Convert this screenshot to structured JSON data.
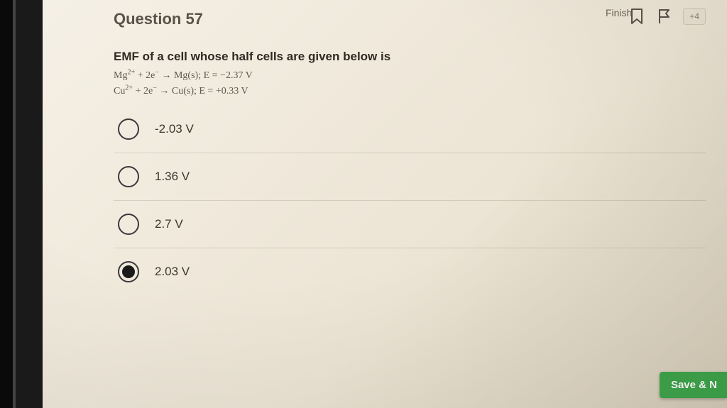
{
  "header": {
    "question_label": "Question 57",
    "finish_hint": "Finish",
    "badge": "+4"
  },
  "question": {
    "stem_prefix": "EMF of a cell whose half cells are given below is",
    "eq1_html": "Mg<sup>2+</sup> + 2e<sup>&minus;</sup> &rarr; Mg(s); E = &minus;2.37 V",
    "eq2_html": "Cu<sup>2+</sup> + 2e<sup>&minus;</sup> &rarr; Cu(s); E = +0.33 V"
  },
  "options": [
    {
      "label": "-2.03 V",
      "selected": false
    },
    {
      "label": "1.36 V",
      "selected": false
    },
    {
      "label": "2.7 V",
      "selected": false
    },
    {
      "label": "2.03 V",
      "selected": true
    }
  ],
  "footer": {
    "save_label": "Save & N"
  },
  "colors": {
    "page_bg_start": "#f5f0e6",
    "page_bg_end": "#d8cfba",
    "save_bg": "#3fa64b",
    "save_text": "#ffffff",
    "text_primary": "#2f2a22",
    "text_muted": "#5e584c",
    "divider": "rgba(120,110,90,0.22)",
    "radio_border": "#3a3a3a",
    "radio_fill": "#1a1a1a"
  }
}
